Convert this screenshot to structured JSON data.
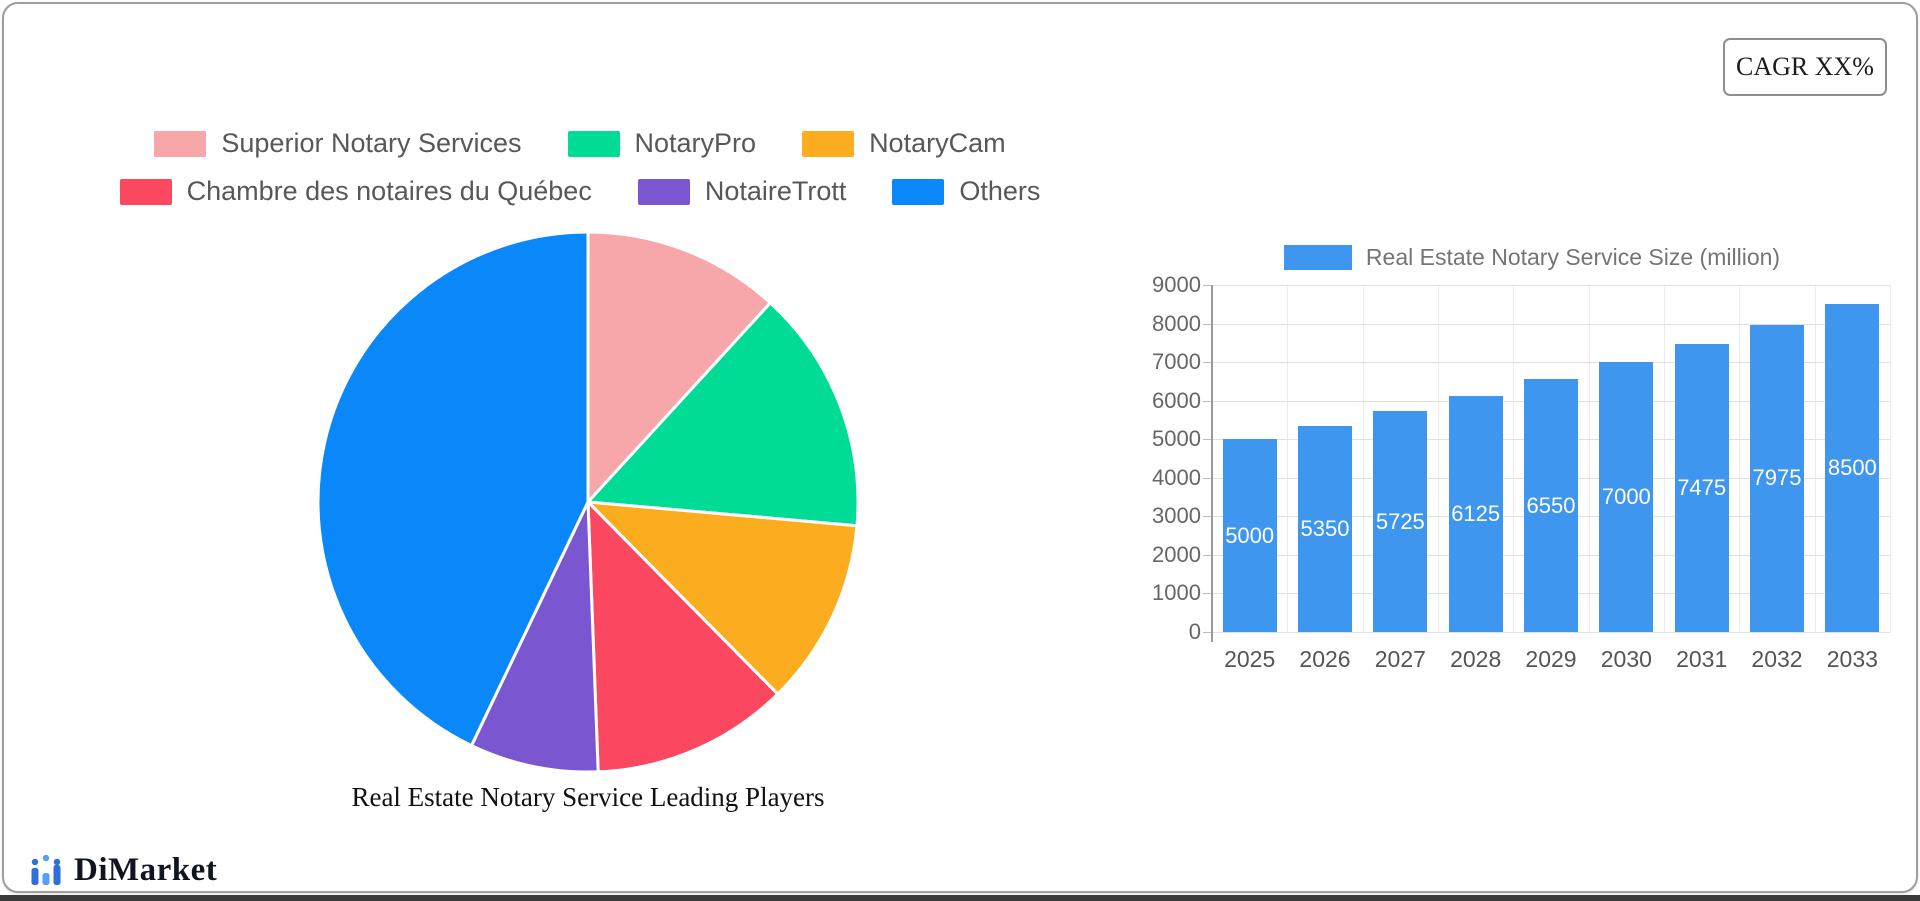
{
  "page": {
    "cagr_label": "CAGR XX%",
    "brand": "DiMarket"
  },
  "chart_data": [
    {
      "type": "pie",
      "title": "Real Estate Notary Service Leading Players",
      "legend_position": "top-left",
      "legend_rows": [
        [
          0,
          1,
          2
        ],
        [
          3,
          4,
          5
        ]
      ],
      "start_angle_deg_from_top": 0,
      "direction": "clockwise",
      "units": "percent",
      "series": [
        {
          "name": "Superior Notary Services",
          "value": 11.8,
          "color": "#f7a6aa"
        },
        {
          "name": "NotaryPro",
          "value": 14.6,
          "color": "#00dc96"
        },
        {
          "name": "NotaryCam",
          "value": 11.2,
          "color": "#fbad1f"
        },
        {
          "name": "Chambre des notaires du Québec",
          "value": 11.8,
          "color": "#fb4760"
        },
        {
          "name": "NotaireTrott",
          "value": 7.7,
          "color": "#7a57d1"
        },
        {
          "name": "Others",
          "value": 42.9,
          "color": "#0a87f9"
        }
      ]
    },
    {
      "type": "bar",
      "legend": "Real Estate Notary Service Size (million)",
      "categories": [
        "2025",
        "2026",
        "2027",
        "2028",
        "2029",
        "2030",
        "2031",
        "2032",
        "2033"
      ],
      "values": [
        5000,
        5350,
        5725,
        6125,
        6550,
        7000,
        7475,
        7975,
        8500
      ],
      "bar_color": "#3e96ee",
      "value_label_color": "#ffffff",
      "ylim": [
        0,
        9000
      ],
      "ytick_step": 1000,
      "grid": true,
      "legend_position": "top"
    }
  ]
}
